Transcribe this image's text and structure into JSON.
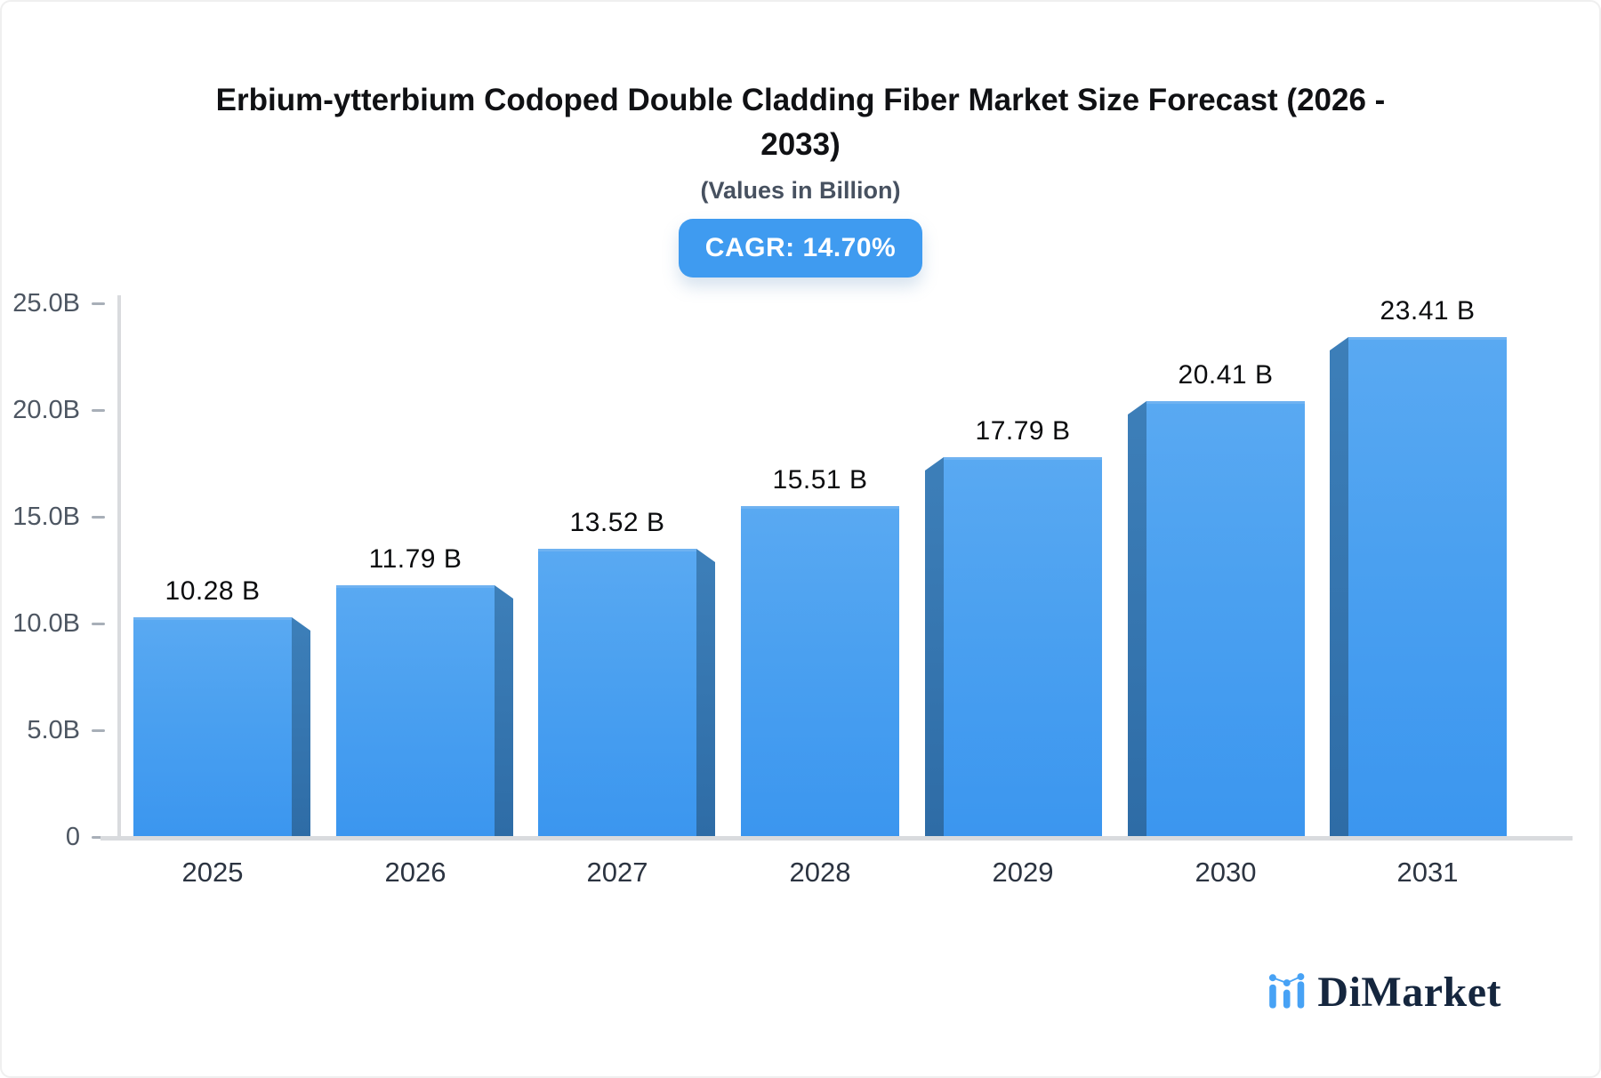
{
  "header": {
    "title_line1": "Erbium-ytterbium Codoped Double Cladding Fiber Market Size Forecast (2026 -",
    "title_line2": "2033)",
    "subtitle": "(Values in Billion)",
    "cagr_badge": "CAGR: 14.70%"
  },
  "chart_data": {
    "type": "bar",
    "title": "Erbium-ytterbium Codoped Double Cladding Fiber Market Size Forecast (2026 - 2033)",
    "subtitle": "(Values in Billion)",
    "cagr_percent": 14.7,
    "unit": "Billion",
    "categories": [
      "2025",
      "2026",
      "2027",
      "2028",
      "2029",
      "2030",
      "2031"
    ],
    "values": [
      10.28,
      11.79,
      13.52,
      15.51,
      17.79,
      20.41,
      23.41
    ],
    "value_labels": [
      "10.28 B",
      "11.79 B",
      "13.52 B",
      "15.51 B",
      "17.79 B",
      "20.41 B",
      "23.41 B"
    ],
    "ylim": [
      0,
      25
    ],
    "ytick_values": [
      0,
      5,
      10,
      15,
      20,
      25
    ],
    "ytick_labels": [
      "0",
      "5.0B",
      "10.0B",
      "15.0B",
      "20.0B",
      "25.0B"
    ],
    "xlabel": "",
    "ylabel": "",
    "grid": false,
    "legend": false,
    "bar_color_top": "#59a9f2",
    "bar_color_bottom": "#3b96ef",
    "bar_side_color": "#2e6ca6",
    "badge_color": "#3f9bf0",
    "axis_color": "#d9dbde"
  },
  "footer": {
    "logo_text": "DiMarket",
    "logo_color": "#15263e",
    "logo_icon_color": "#47a2f5"
  }
}
